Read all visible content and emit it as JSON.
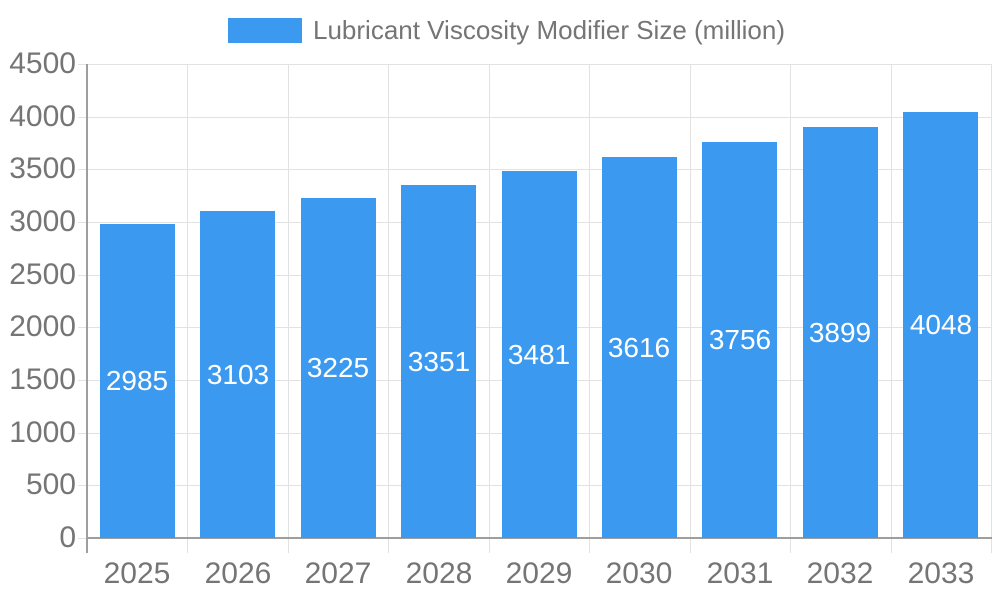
{
  "legend": {
    "label": "Lubricant Viscosity Modifier Size (million)"
  },
  "chart_data": {
    "type": "bar",
    "title": "Lubricant Viscosity Modifier Size (million)",
    "categories": [
      "2025",
      "2026",
      "2027",
      "2028",
      "2029",
      "2030",
      "2031",
      "2032",
      "2033"
    ],
    "series": [
      {
        "name": "Lubricant Viscosity Modifier Size (million)",
        "values": [
          2985,
          3103,
          3225,
          3351,
          3481,
          3616,
          3756,
          3899,
          4048
        ]
      }
    ],
    "data_labels": [
      "2985",
      "3103",
      "3225",
      "3351",
      "3481",
      "3616",
      "3756",
      "3899",
      "4048"
    ],
    "xlabel": "",
    "ylabel": "",
    "ylim": [
      0,
      4500
    ],
    "yticks": [
      0,
      500,
      1000,
      1500,
      2000,
      2500,
      3000,
      3500,
      4000,
      4500
    ],
    "grid": true,
    "legend_position": "top",
    "colors": {
      "bar": "#3B99F0",
      "grid_line": "#E2E2E2",
      "axis_line": "#9E9E9E",
      "tick_text": "#757575",
      "legend_text": "#757575",
      "data_label_text": "#FFFFFF",
      "background": "#FFFFFF"
    }
  }
}
